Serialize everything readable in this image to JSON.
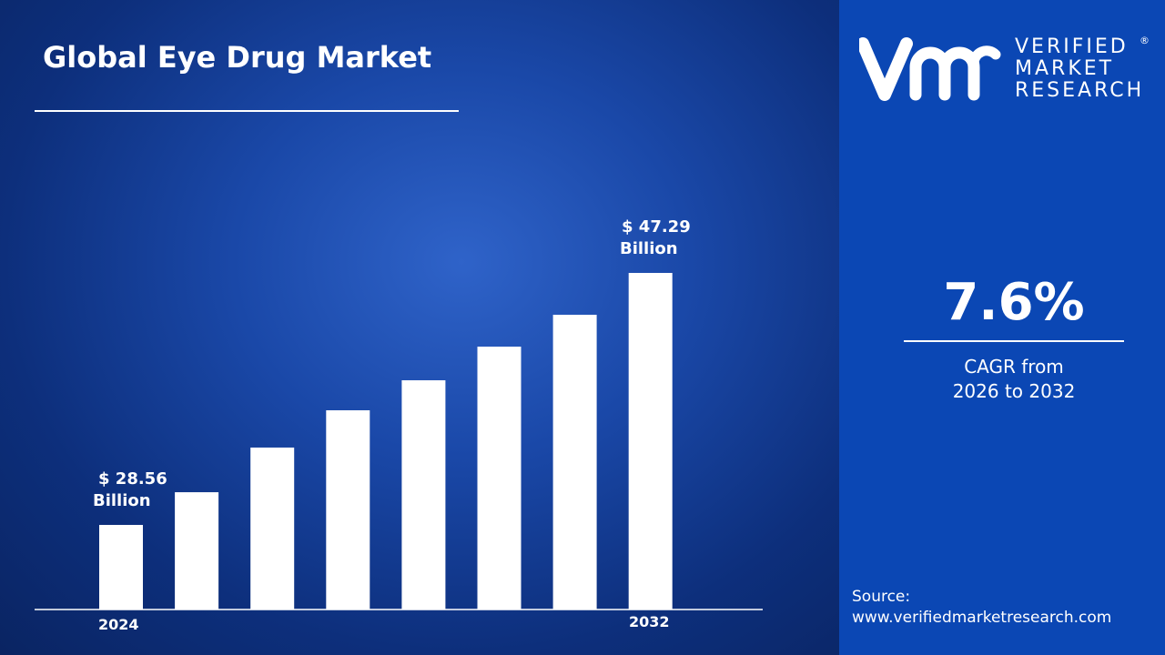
{
  "title": "Global Eye Drug Market",
  "chart_data": {
    "type": "bar",
    "title": "Global Eye Drug Market",
    "categories": [
      "2024",
      "",
      "",
      "",
      "",
      "",
      "",
      "2032"
    ],
    "values": [
      28.56,
      30.99,
      34.31,
      37.08,
      39.31,
      41.81,
      44.18,
      47.29
    ],
    "unit": "Billion USD",
    "ylim": [
      22.27,
      47.29
    ],
    "grid": false,
    "bar_color": "#ffffff",
    "data_labels": {
      "first": {
        "value": "$ 28.56",
        "unit": "Billion"
      },
      "last": {
        "value": "$ 47.29",
        "unit": "Billion"
      }
    },
    "tick_labels": {
      "first": "2024",
      "last": "2032"
    }
  },
  "cagr": {
    "value": "7.6%",
    "line1": "CAGR from",
    "line2": "2026 to 2032"
  },
  "logo": {
    "line1": "VERIFIED",
    "line2": "MARKET",
    "line3": "RESEARCH",
    "mark": "®"
  },
  "source": {
    "label": "Source:",
    "url": "www.verifiedmarketresearch.com"
  },
  "colors": {
    "panel": "#0b47b4",
    "background": "#1a48a8",
    "bars": "#ffffff"
  }
}
